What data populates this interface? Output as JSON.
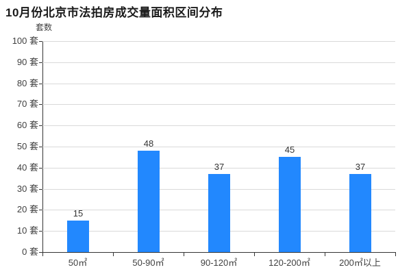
{
  "title": "10月份北京市法拍房成交量面积区间分布",
  "colors": {
    "bar": "#2288FE",
    "grid": "#D9D9D9",
    "axis": "#333333",
    "text": "#404040",
    "title": "#1A1A1A",
    "background": "#FFFFFF"
  },
  "chart_data": {
    "type": "bar",
    "title": "10月份北京市法拍房成交量面积区间分布",
    "unit_label": "套数",
    "categories": [
      "50㎡",
      "50-90㎡",
      "90-120㎡",
      "120-200㎡",
      "200㎡以上"
    ],
    "values": [
      15,
      48,
      37,
      45,
      37
    ],
    "xlabel": "",
    "ylabel": "套数",
    "ylim": [
      0,
      100
    ],
    "ytick_values": [
      0,
      10,
      20,
      30,
      40,
      50,
      60,
      70,
      80,
      90,
      100
    ],
    "ytick_labels": [
      "0 套",
      "10 套",
      "20 套",
      "30 套",
      "40 套",
      "50 套",
      "60 套",
      "70 套",
      "80 套",
      "90 套",
      "100 套"
    ],
    "grid": true,
    "legend_position": "none",
    "data_labels_shown": true
  }
}
